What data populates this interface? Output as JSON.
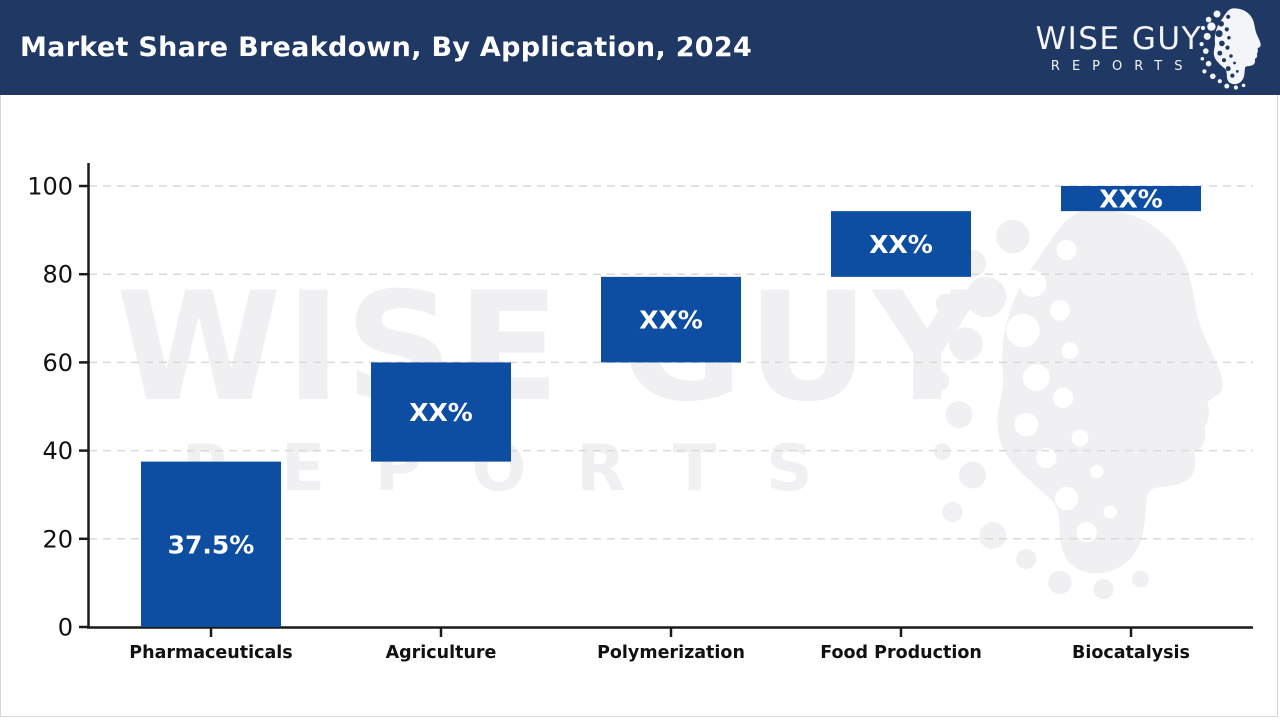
{
  "header": {
    "title": "Market Share Breakdown, By Application, 2024",
    "logo": {
      "line1": "WISE GUY",
      "line2": "REPORTS"
    }
  },
  "watermark": {
    "line1": "WISE GUY",
    "line2": "REPORTS"
  },
  "colors": {
    "header_bg": "#1f3864",
    "bar": "#0d4da2",
    "grid": "#d9d9d9",
    "axis": "#1a1a1a",
    "tick_text": "#111111",
    "bar_label": "#ffffff",
    "watermark": "#f0f0f2",
    "logo": "#f4f5f9",
    "frame_border": "#d6d6d6"
  },
  "chart_data": {
    "type": "bar",
    "subtype": "waterfall",
    "title": "Market Share Breakdown, By Application, 2024",
    "categories": [
      "Pharmaceuticals",
      "Agriculture",
      "Polymerization",
      "Food Production",
      "Biocatalysis"
    ],
    "segments": [
      {
        "category": "Pharmaceuticals",
        "start": 0,
        "end": 37.5,
        "label": "37.5%"
      },
      {
        "category": "Agriculture",
        "start": 37.5,
        "end": 60,
        "label": "XX%"
      },
      {
        "category": "Polymerization",
        "start": 60,
        "end": 79.4,
        "label": "XX%"
      },
      {
        "category": "Food Production",
        "start": 79.4,
        "end": 94.3,
        "label": "XX%"
      },
      {
        "category": "Biocatalysis",
        "start": 94.3,
        "end": 100,
        "label": "XX%"
      }
    ],
    "ylim": [
      0,
      105
    ],
    "yticks": [
      0,
      20,
      40,
      60,
      80,
      100
    ],
    "grid": "horizontal-dashed",
    "legend": "none",
    "xlabel": "",
    "ylabel": ""
  }
}
